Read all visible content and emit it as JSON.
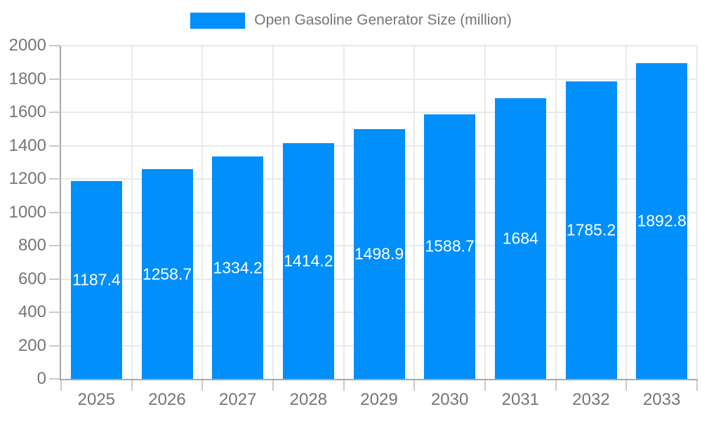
{
  "legend": {
    "items": [
      {
        "label": "Open Gasoline Generator Size (million)",
        "color": "#008FFB"
      }
    ],
    "position": "top"
  },
  "chart_data": {
    "type": "bar",
    "title": "Open Gasoline Generator Size (million)",
    "categories": [
      "2025",
      "2026",
      "2027",
      "2028",
      "2029",
      "2030",
      "2031",
      "2032",
      "2033"
    ],
    "series": [
      {
        "name": "Open Gasoline Generator Size (million)",
        "values": [
          1187.4,
          1258.7,
          1334.2,
          1414.2,
          1498.9,
          1588.7,
          1684,
          1785.2,
          1892.8
        ]
      }
    ],
    "data_labels": [
      "1187.4",
      "1258.7",
      "1334.2",
      "1414.2",
      "1498.9",
      "1588.7",
      "1684",
      "1785.2",
      "1892.8"
    ],
    "xlabel": "",
    "ylabel": "",
    "ylim": [
      0,
      2000
    ],
    "ytick_step": 200,
    "ytick_labels": [
      "0",
      "200",
      "400",
      "600",
      "800",
      "1000",
      "1200",
      "1400",
      "1600",
      "1800",
      "2000"
    ],
    "grid": true,
    "legend_position": "top",
    "colors": {
      "bar": "#008FFB",
      "data_label": "#FFFFFF",
      "axis_text": "#757575",
      "gridline": "#E9E9E9",
      "axis_line": "#A8A8A8",
      "tick": "#C9C9C9",
      "background": "#FFFFFF"
    }
  }
}
